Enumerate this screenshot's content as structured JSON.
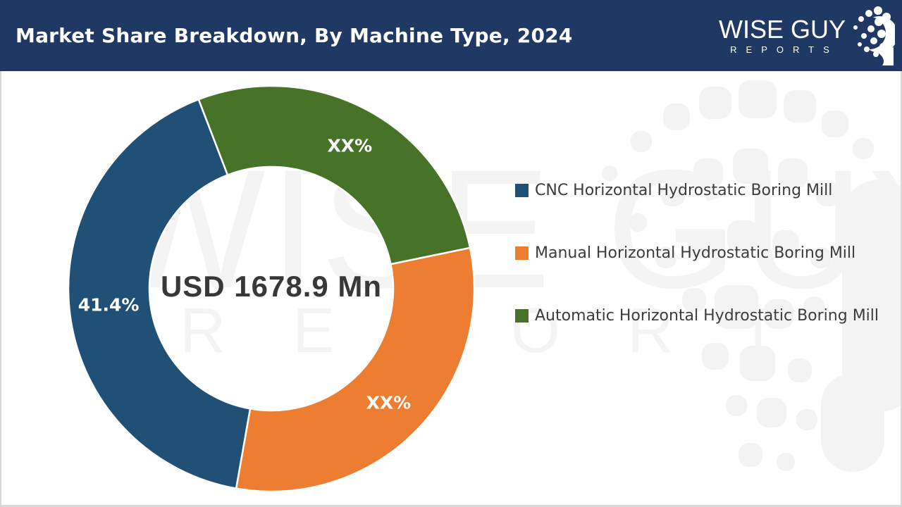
{
  "header": {
    "title": "Market Share Breakdown, By Machine Type, 2024",
    "bg_color": "#1F3864",
    "logo": {
      "line1": "WISE GUY",
      "line2": "REPORTS"
    }
  },
  "chart_data": {
    "type": "pie",
    "subtype": "donut",
    "center_label": "USD 1678.9 Mn",
    "start_angle_deg": 111,
    "direction": "counterclockwise",
    "legend_position": "right",
    "segments": [
      {
        "name": "CNC Horizontal Hydrostatic Boring Mill",
        "display_label": "41.4%",
        "value_pct": 41.4,
        "color": "#215077"
      },
      {
        "name": "Manual Horizontal Hydrostatic Boring Mill",
        "display_label": "XX%",
        "value_pct": 31.0,
        "color": "#EC7D31"
      },
      {
        "name": "Automatic Horizontal Hydrostatic Boring Mill",
        "display_label": "XX%",
        "value_pct": 27.6,
        "color": "#477329"
      }
    ]
  },
  "watermark": {
    "line1": "WISE GUY",
    "line2": "REPORTS"
  }
}
